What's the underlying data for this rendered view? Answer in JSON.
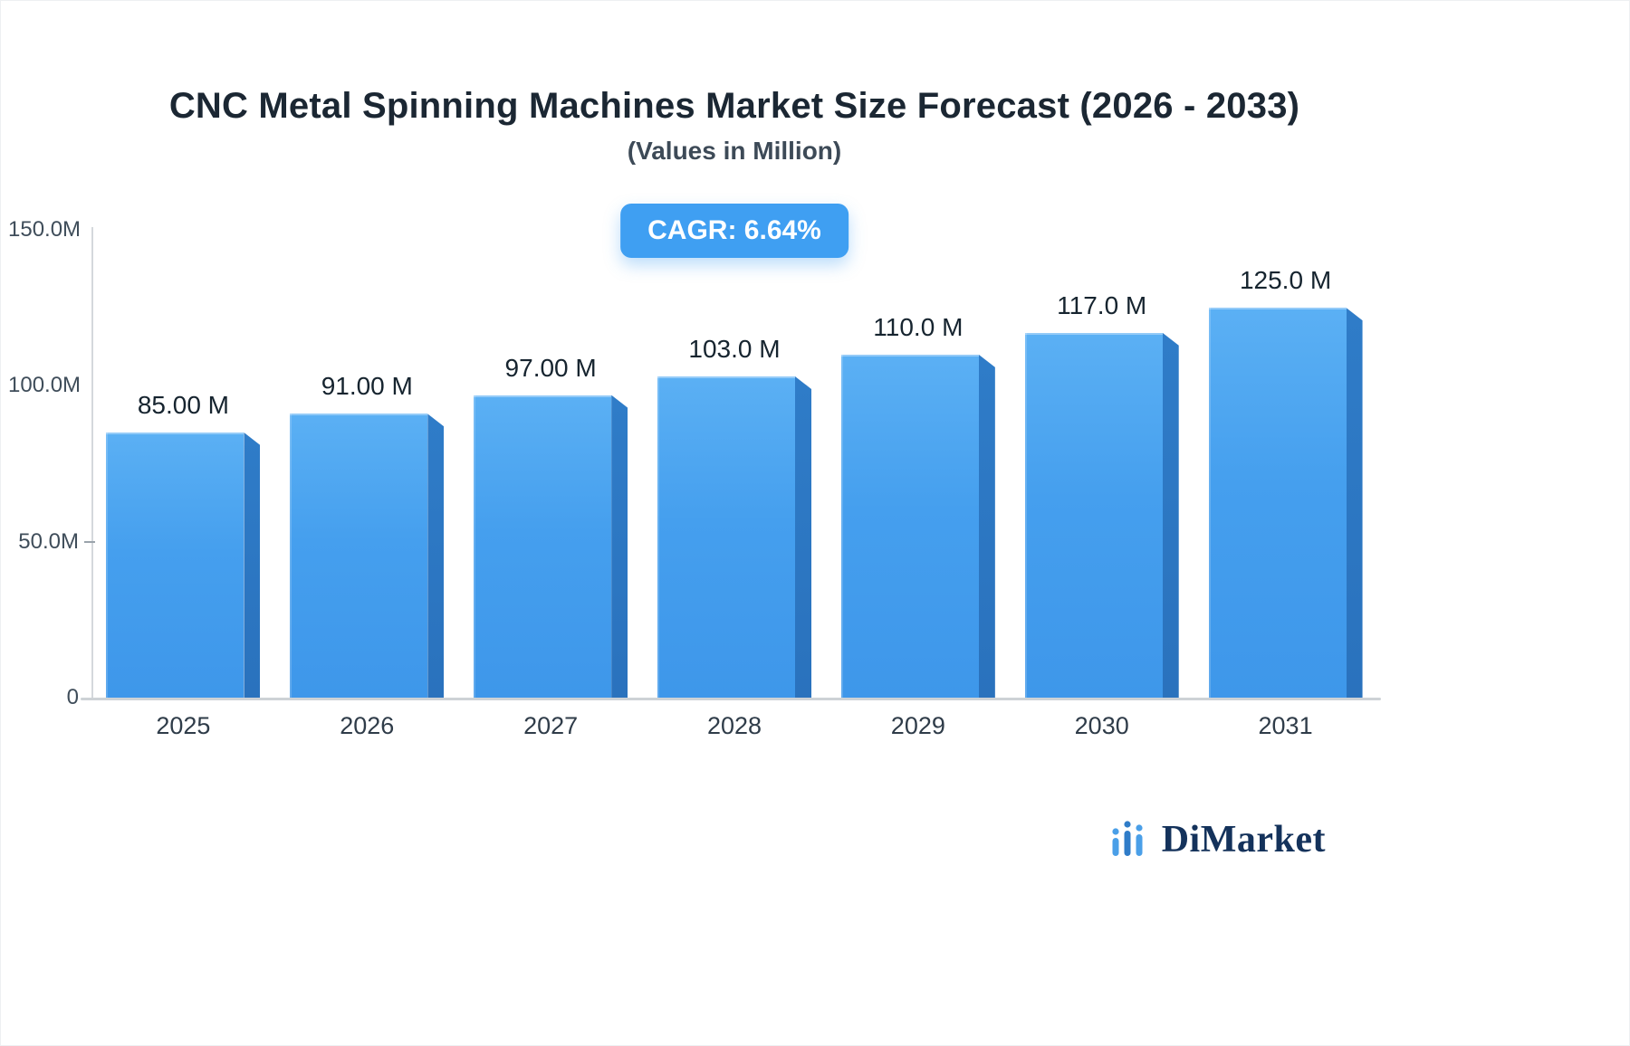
{
  "header": {
    "title": "CNC Metal Spinning Machines Market Size Forecast (2026 - 2033)",
    "subtitle": "(Values in Million)",
    "cagr_badge": "CAGR: 6.64%"
  },
  "brand": {
    "name": "DiMarket",
    "icon": "bar-chart-logo-icon"
  },
  "colors": {
    "bar_front": "#459fee",
    "bar_side": "#2c76c2",
    "badge": "#3f9ff2",
    "title_text": "#1b2733",
    "brand_text": "#14325b",
    "brand_icon": "#4a9fe8"
  },
  "chart_data": {
    "type": "bar",
    "title": "CNC Metal Spinning Machines Market Size Forecast (2026 - 2033)",
    "subtitle": "(Values in Million)",
    "categories": [
      "2025",
      "2026",
      "2027",
      "2028",
      "2029",
      "2030",
      "2031"
    ],
    "values": [
      85,
      91,
      97,
      103,
      110,
      117,
      125
    ],
    "value_labels": [
      "85.00 M",
      "91.00 M",
      "97.00 M",
      "103.0 M",
      "110.0 M",
      "117.0 M",
      "125.0 M"
    ],
    "xlabel": "",
    "ylabel": "",
    "ylim": [
      0,
      150
    ],
    "yticks": [
      0,
      50,
      100,
      150
    ],
    "ytick_labels": [
      "0",
      "50.0M",
      "100.0M",
      "150.0M"
    ],
    "ytick_marks": [
      50
    ],
    "grid": false,
    "legend": false,
    "annotations": [
      "CAGR: 6.64%"
    ]
  }
}
